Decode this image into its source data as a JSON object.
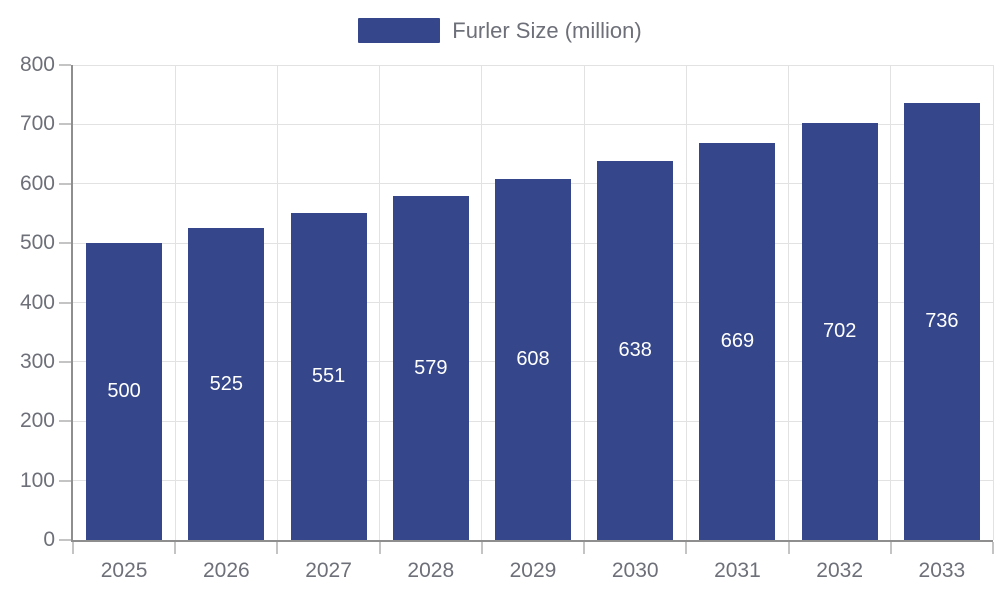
{
  "chart": {
    "legend": {
      "label": "Furler Size (million)",
      "swatch_color": "#35478A",
      "position": "top-center"
    },
    "colors": {
      "bar": "#35478A",
      "bar_label": "#FFFFFF",
      "axis_label": "#6E7079",
      "axis_line": "#8E8E8E",
      "gridline": "#E2E2E2",
      "tick": "#C4C4C4",
      "background": "#FFFFFF"
    }
  },
  "chart_data": {
    "type": "bar",
    "categories": [
      "2025",
      "2026",
      "2027",
      "2028",
      "2029",
      "2030",
      "2031",
      "2032",
      "2033"
    ],
    "series": [
      {
        "name": "Furler Size (million)",
        "values": [
          500,
          525,
          551,
          579,
          608,
          638,
          669,
          702,
          736
        ]
      }
    ],
    "title": "",
    "xlabel": "",
    "ylabel": "",
    "ylim": [
      0,
      800
    ],
    "y_ticks": [
      0,
      100,
      200,
      300,
      400,
      500,
      600,
      700,
      800
    ],
    "grid": true,
    "legend_position": "top",
    "value_labels": "inside-center"
  }
}
